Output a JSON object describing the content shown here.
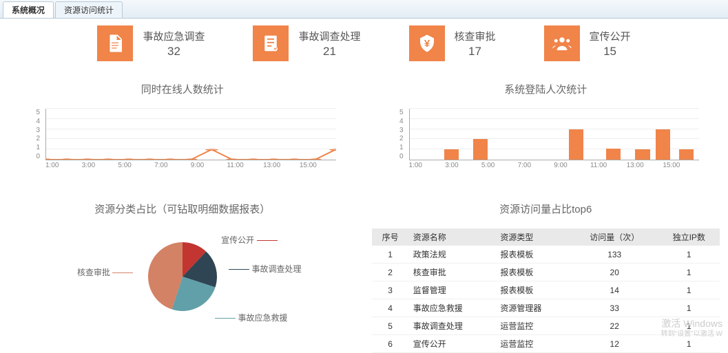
{
  "tabs": [
    {
      "label": "系统概况",
      "active": true
    },
    {
      "label": "资源访问统计",
      "active": false
    }
  ],
  "stats": [
    {
      "label": "事故应急调查",
      "value": "32",
      "icon": "document-icon"
    },
    {
      "label": "事故调查处理",
      "value": "21",
      "icon": "form-icon"
    },
    {
      "label": "核查审批",
      "value": "17",
      "icon": "money-icon"
    },
    {
      "label": "宣传公开",
      "value": "15",
      "icon": "people-icon"
    }
  ],
  "stat_icon_bg": "#f08449",
  "online_chart": {
    "title": "同时在线人数统计",
    "type": "line",
    "y_ticks": [
      "0",
      "1",
      "2",
      "3",
      "4",
      "5"
    ],
    "x_ticks": [
      "1:00",
      "3:00",
      "5:00",
      "7:00",
      "9:00",
      "11:00",
      "13:00",
      "15:00"
    ],
    "values": [
      0,
      0,
      0,
      0,
      0,
      0,
      0,
      0,
      1,
      0,
      0,
      0,
      0,
      0,
      1
    ],
    "line_color": "#f08449",
    "marker_color": "#f08449",
    "ylim": [
      0,
      5
    ]
  },
  "login_chart": {
    "title": "系统登陆人次统计",
    "type": "bar",
    "y_ticks": [
      "0",
      "1",
      "2",
      "3",
      "4",
      "5"
    ],
    "x_ticks": [
      "1:00",
      "3:00",
      "5:00",
      "7:00",
      "9:00",
      "11:00",
      "13:00",
      "15:00"
    ],
    "bars": [
      {
        "x_pct": 12,
        "h_pct": 20,
        "w_pct": 5
      },
      {
        "x_pct": 22,
        "h_pct": 40,
        "w_pct": 5
      },
      {
        "x_pct": 55,
        "h_pct": 60,
        "w_pct": 5
      },
      {
        "x_pct": 68,
        "h_pct": 22,
        "w_pct": 5
      },
      {
        "x_pct": 78,
        "h_pct": 20,
        "w_pct": 5
      },
      {
        "x_pct": 85,
        "h_pct": 60,
        "w_pct": 5
      },
      {
        "x_pct": 93,
        "h_pct": 20,
        "w_pct": 5
      }
    ],
    "bar_color": "#f08449",
    "ylim": [
      0,
      5
    ]
  },
  "pie_chart": {
    "title": "资源分类占比（可钻取明细数据报表）",
    "type": "pie",
    "slices": [
      {
        "label": "宣传公开",
        "color": "#c23531",
        "pct": 12
      },
      {
        "label": "事故调查处理",
        "color": "#2f4554",
        "pct": 18
      },
      {
        "label": "事故应急救援",
        "color": "#61a0a8",
        "pct": 25
      },
      {
        "label": "核查审批",
        "color": "#d48265",
        "pct": 45
      }
    ]
  },
  "table": {
    "title": "资源访问量占比top6",
    "columns": [
      "序号",
      "资源名称",
      "资源类型",
      "访问量（次）",
      "独立IP数"
    ],
    "rows": [
      [
        "1",
        "政策法规",
        "报表模板",
        "133",
        "1"
      ],
      [
        "2",
        "核查审批",
        "报表模板",
        "20",
        "1"
      ],
      [
        "3",
        "监督管理",
        "报表模板",
        "14",
        "1"
      ],
      [
        "4",
        "事故应急救援",
        "资源管理器",
        "33",
        "1"
      ],
      [
        "5",
        "事故调查处理",
        "运营监控",
        "22",
        "1"
      ],
      [
        "6",
        "宣传公开",
        "运营监控",
        "12",
        "1"
      ]
    ]
  },
  "watermark": {
    "title": "激活 Windows",
    "sub": "转到\"设置\"以激活 W"
  }
}
